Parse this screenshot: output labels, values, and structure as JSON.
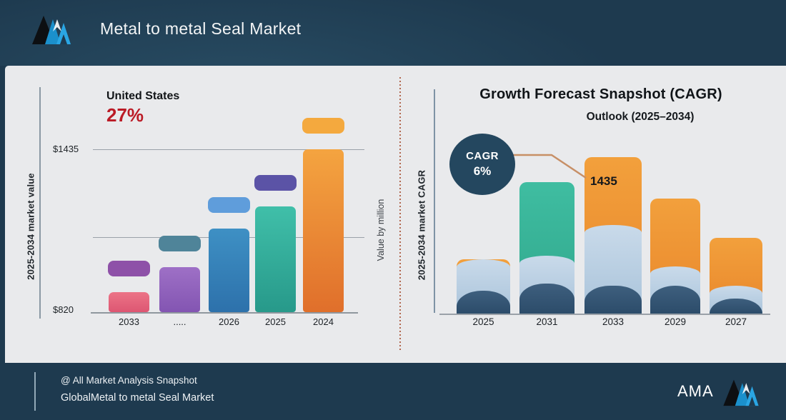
{
  "header": {
    "title": "Metal to metal Seal Market",
    "logo_name": "AMA mountain logo"
  },
  "left_chart": {
    "region_label": "United States",
    "highlight_value": "27%",
    "y_axis_title": "2025-2034 market value",
    "y_tick_top": "$1435",
    "y_tick_bottom": "$820"
  },
  "divider_label": "Value by million",
  "right_chart": {
    "title": "Growth Forecast Snapshot (CAGR)",
    "subtitle": "Outlook (2025–2034)",
    "y_axis_title": "2025-2034 market CAGR",
    "badge_line1": "CAGR",
    "badge_line2": "6%",
    "annotation": "1435"
  },
  "footer": {
    "line1": "@ All Market Analysis Snapshot",
    "line2": "GlobalMetal to metal Seal Market",
    "brand": "AMA"
  },
  "colors": {
    "navy_bg": "#1e3a4f",
    "card_bg": "#e9eaec",
    "accent_red": "#bb1b26",
    "badge_navy": "#24475f",
    "connector_tan": "#c78f66",
    "divider_dot": "#b2674e",
    "logo_blue": "#2aa6e4"
  },
  "chart_data": [
    {
      "type": "bar",
      "panel": "left",
      "title": "United States",
      "highlight": "27%",
      "ylabel": "2025-2034 market value",
      "yticks_labeled": {
        "820": "$820",
        "1435": "$1435"
      },
      "ylim": [
        820,
        1500
      ],
      "gridlines_at": [
        1435,
        1150
      ],
      "categories": [
        "2033",
        ".....",
        "2026",
        "2025",
        "2024"
      ],
      "values": [
        895,
        990,
        1135,
        1220,
        1435
      ],
      "bar_colors_top": [
        "#ec7487",
        "#9e70c6",
        "#3e90c4",
        "#40bfa9",
        "#f4a440"
      ],
      "bar_colors_bottom": [
        "#dd5672",
        "#8355b2",
        "#2d71ab",
        "#27998a",
        "#e06f2b"
      ],
      "cap_colors": [
        "#8e51a8",
        "#4f8499",
        "#5f9ddb",
        "#5b53a6",
        "#f4a93e"
      ]
    },
    {
      "type": "bar",
      "panel": "right",
      "stacked": true,
      "title": "Growth Forecast Snapshot (CAGR)",
      "subtitle": "Outlook (2025–2034)",
      "ylabel": "2025-2034 market CAGR",
      "badge": "CAGR 6%",
      "annotation": {
        "text": "1435",
        "category": "2033"
      },
      "units": "relative height (px), unlabeled axis",
      "categories": [
        "2025",
        "2031",
        "2033",
        "2029",
        "2027"
      ],
      "series": [
        {
          "name": "base-navy",
          "values": [
            32,
            42,
            39,
            39,
            21
          ]
        },
        {
          "name": "mid-lightblue",
          "values": [
            44,
            39,
            85,
            27,
            18
          ]
        },
        {
          "name": "top-colored",
          "values": [
            0,
            103,
            95,
            95,
            67
          ],
          "colors": [
            null,
            "teal",
            "orange",
            "orange",
            "orange"
          ]
        }
      ]
    }
  ]
}
